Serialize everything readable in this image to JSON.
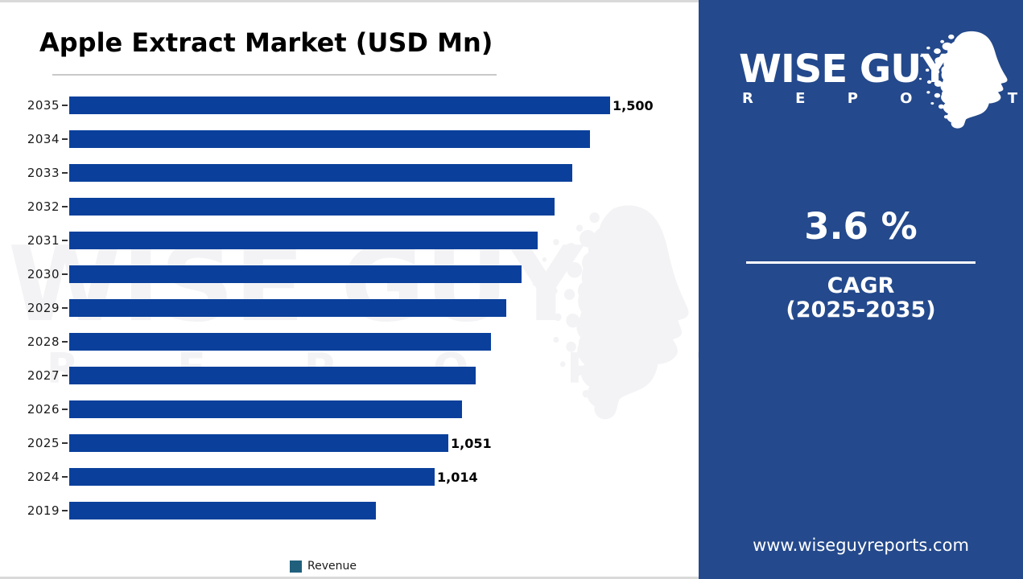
{
  "chart": {
    "title": "Apple Extract Market (USD Mn)",
    "legend": {
      "label": "Revenue",
      "marker_color": "#20607d",
      "position": "bottom-center"
    }
  },
  "chart_data": {
    "type": "bar",
    "orientation": "horizontal",
    "title": "Apple Extract Market (USD Mn)",
    "xlabel": "",
    "ylabel": "",
    "series_name": "Revenue",
    "categories": [
      "2035",
      "2034",
      "2033",
      "2032",
      "2031",
      "2030",
      "2029",
      "2028",
      "2027",
      "2026",
      "2025",
      "2024",
      "2019"
    ],
    "values": [
      1500,
      1445,
      1395,
      1347,
      1300,
      1255,
      1211,
      1169,
      1128,
      1089,
      1051,
      1014,
      850
    ],
    "labels": [
      "1,500",
      "",
      "",
      "",
      "",
      "",
      "",
      "",
      "",
      "",
      "1,051",
      "1,014",
      ""
    ],
    "bar_color": "#0a409c",
    "xlim": [
      0,
      1550
    ],
    "grid": false,
    "legend_position": "bottom-center"
  },
  "sidebar": {
    "background_color": "#24498c",
    "logo": {
      "line1": "WISE GUY",
      "line2": "R E P O R T S",
      "head_icon": "dotted-head-profile"
    },
    "cagr": {
      "value": "3.6 %",
      "label_line1": "CAGR",
      "label_line2": "(2025-2035)"
    },
    "website": "www.wiseguyreports.com"
  },
  "watermark": {
    "line1": "WISE GUY",
    "line2": "R E P O R T S"
  }
}
